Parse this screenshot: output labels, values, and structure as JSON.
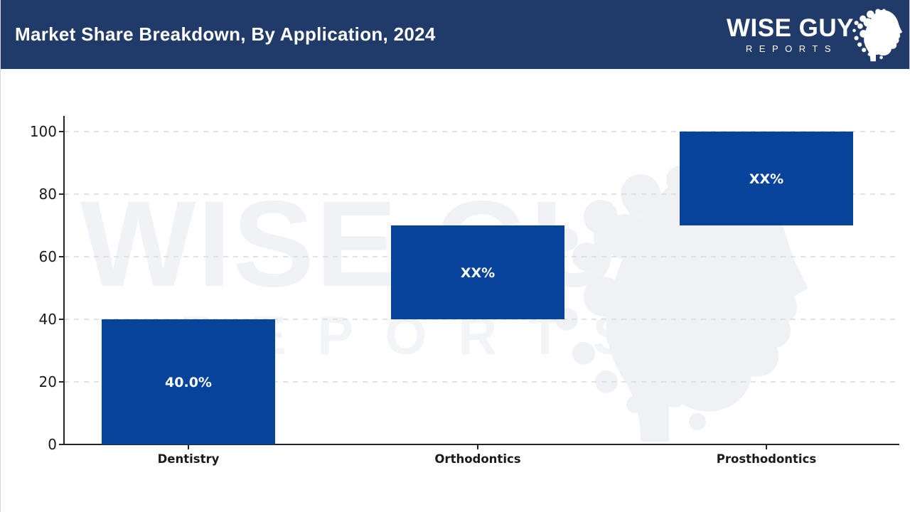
{
  "header": {
    "title": "Market Share Breakdown, By Application, 2024",
    "logo": {
      "line1": "WISE GUY",
      "line2": "REPORTS"
    },
    "background_color": "#203a69"
  },
  "watermark": {
    "line1": "WISE GUY",
    "line2": "REPORTS"
  },
  "chart_data": {
    "type": "bar",
    "subtype": "floating-segment-bar",
    "title": "Market Share Breakdown, By Application, 2024",
    "categories": [
      "Dentistry",
      "Orthodontics",
      "Prosthodontics"
    ],
    "segments": [
      {
        "category": "Dentistry",
        "start": 0,
        "end": 40,
        "label": "40.0%"
      },
      {
        "category": "Orthodontics",
        "start": 40,
        "end": 70,
        "label": "XX%"
      },
      {
        "category": "Prosthodontics",
        "start": 70,
        "end": 100,
        "label": "XX%"
      }
    ],
    "yticks": [
      0,
      20,
      40,
      60,
      80,
      100
    ],
    "ylim": [
      0,
      105
    ],
    "xlabel": "",
    "ylabel": "",
    "grid": "horizontal-dashed",
    "legend": "none",
    "bar_color": "#07439a",
    "bar_label_color": "#ffffff",
    "axis_color": "#262626",
    "grid_color": "#d9d9d9",
    "tick_label_color": "#1a1a1a"
  }
}
